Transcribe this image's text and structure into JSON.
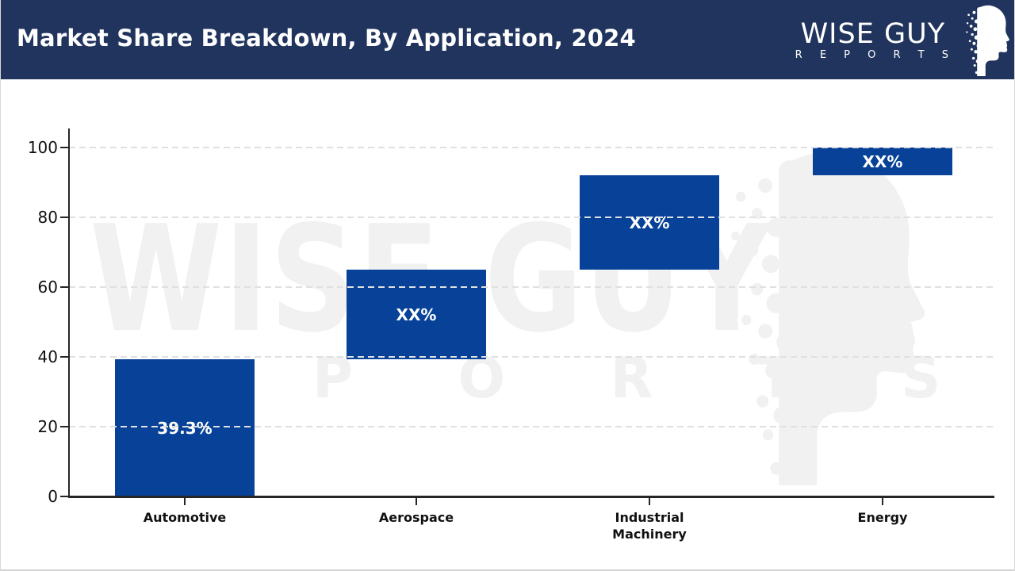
{
  "header": {
    "title": "Market Share Breakdown, By Application, 2024",
    "logo": {
      "line1": "WISE GUY",
      "line2": "R E P O R T S"
    }
  },
  "watermark": {
    "line1": "WISE GUY",
    "line2": "P O R T S"
  },
  "chart_data": {
    "type": "bar",
    "subtype": "floating-segment waterfall (market share breakdown, cumulative 0-100%)",
    "title": "Market Share Breakdown, By Application, 2024",
    "categories": [
      "Automotive",
      "Aerospace",
      "Industrial Machinery",
      "Energy"
    ],
    "segments": [
      {
        "category": "Automotive",
        "start": 0,
        "end": 39.3,
        "label": "39.3%"
      },
      {
        "category": "Aerospace",
        "start": 39.3,
        "end": 65,
        "label": "XX%"
      },
      {
        "category": "Industrial Machinery",
        "start": 65,
        "end": 92,
        "label": "XX%"
      },
      {
        "category": "Energy",
        "start": 92,
        "end": 100,
        "label": "XX%"
      }
    ],
    "xlabel": "",
    "ylabel": "",
    "yticks": [
      0,
      20,
      40,
      60,
      80,
      100
    ],
    "ylim": [
      0,
      105
    ],
    "grid": "horizontal-dashed",
    "legend": "none",
    "bar_color": "#084298",
    "bar_label_color": "#ffffff",
    "gridline_color": "#e0e0e0",
    "axis_color": "#262626"
  },
  "colors": {
    "header_bg": "#21345e",
    "title_text": "#ffffff",
    "watermark": "#f1f1f1"
  }
}
